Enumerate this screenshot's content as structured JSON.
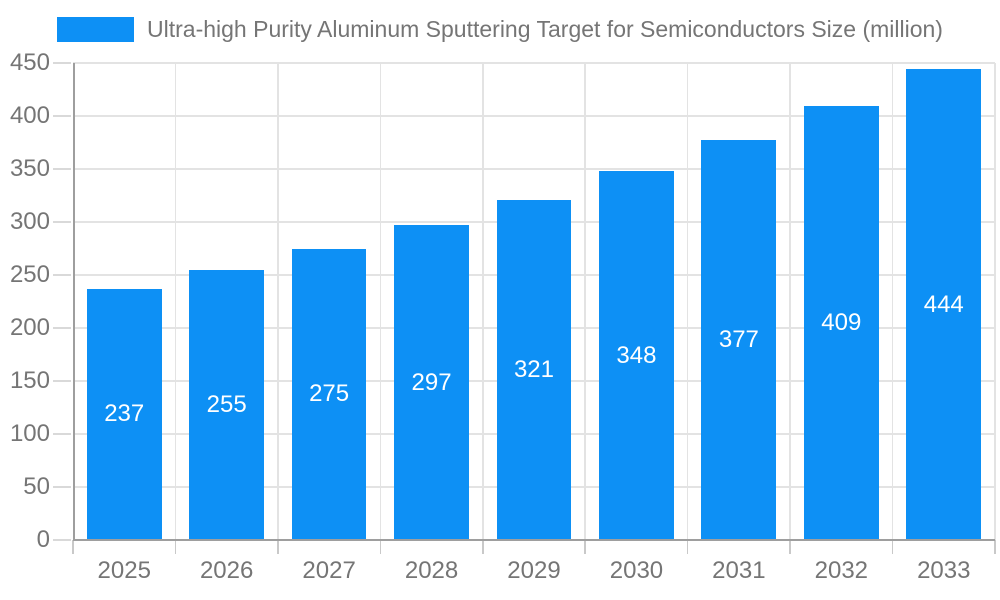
{
  "legend": {
    "label": "Ultra-high Purity Aluminum Sputtering Target for Semiconductors Size (million)"
  },
  "chart_data": {
    "type": "bar",
    "title": "Ultra-high Purity Aluminum Sputtering Target for Semiconductors Size (million)",
    "categories": [
      "2025",
      "2026",
      "2027",
      "2028",
      "2029",
      "2030",
      "2031",
      "2032",
      "2033"
    ],
    "values": [
      237,
      255,
      275,
      297,
      321,
      348,
      377,
      409,
      444
    ],
    "xlabel": "",
    "ylabel": "",
    "ylim": [
      0,
      450
    ],
    "yticks": [
      0,
      50,
      100,
      150,
      200,
      250,
      300,
      350,
      400,
      450
    ],
    "grid": true,
    "legend_position": "top-center",
    "bar_label_position": "center",
    "colors": {
      "bar": "#0D90F5",
      "bar_label": "#FFFFFF",
      "grid_line": "#E3E3E3",
      "axis_line": "#9E9E9E",
      "tick_mark": "#C9C9C9",
      "tick_label": "#757575",
      "background": "#FFFFFF"
    }
  }
}
